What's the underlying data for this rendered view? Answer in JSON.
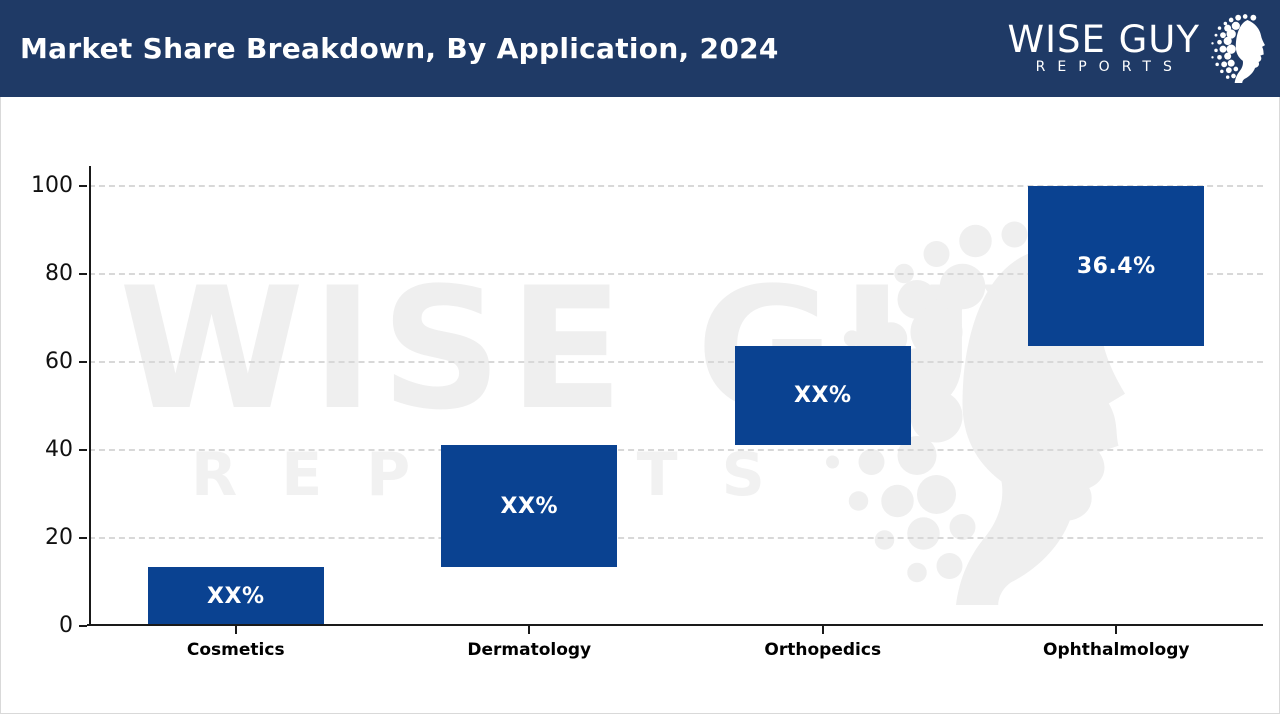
{
  "header": {
    "title": "Market Share Breakdown, By Application, 2024",
    "bg_color": "#1f3a66",
    "logo": {
      "line1": "WISE GUY",
      "line2": "REPORTS",
      "icon": "wiseguy-head-icon"
    }
  },
  "watermark": {
    "line1": "WISE GUY",
    "line2": "REPORTS",
    "color": "#efefef"
  },
  "chart_data": {
    "type": "bar",
    "subtype": "floating-waterfall",
    "title": "Market Share Breakdown, By Application, 2024",
    "categories": [
      "Cosmetics",
      "Dermatology",
      "Orthopedics",
      "Ophthalmology"
    ],
    "series": [
      {
        "name": "Market Share",
        "segments": [
          {
            "category": "Cosmetics",
            "start": 0,
            "end": 13.4,
            "value_label": "XX%"
          },
          {
            "category": "Dermatology",
            "start": 13.4,
            "end": 41.1,
            "value_label": "XX%"
          },
          {
            "category": "Orthopedics",
            "start": 41.1,
            "end": 63.6,
            "value_label": "XX%"
          },
          {
            "category": "Ophthalmology",
            "start": 63.6,
            "end": 100,
            "value_label": "36.4%"
          }
        ]
      }
    ],
    "xlabel": "",
    "ylabel": "",
    "ylim": [
      0,
      100
    ],
    "yticks": [
      0,
      20,
      40,
      60,
      80,
      100
    ],
    "grid": "horizontal-dashed",
    "legend": "none",
    "bar_color": "#0a4291",
    "bar_label_color": "#ffffff",
    "axis_color": "#1a1a1a",
    "gridline_color": "#d8d8d8"
  }
}
